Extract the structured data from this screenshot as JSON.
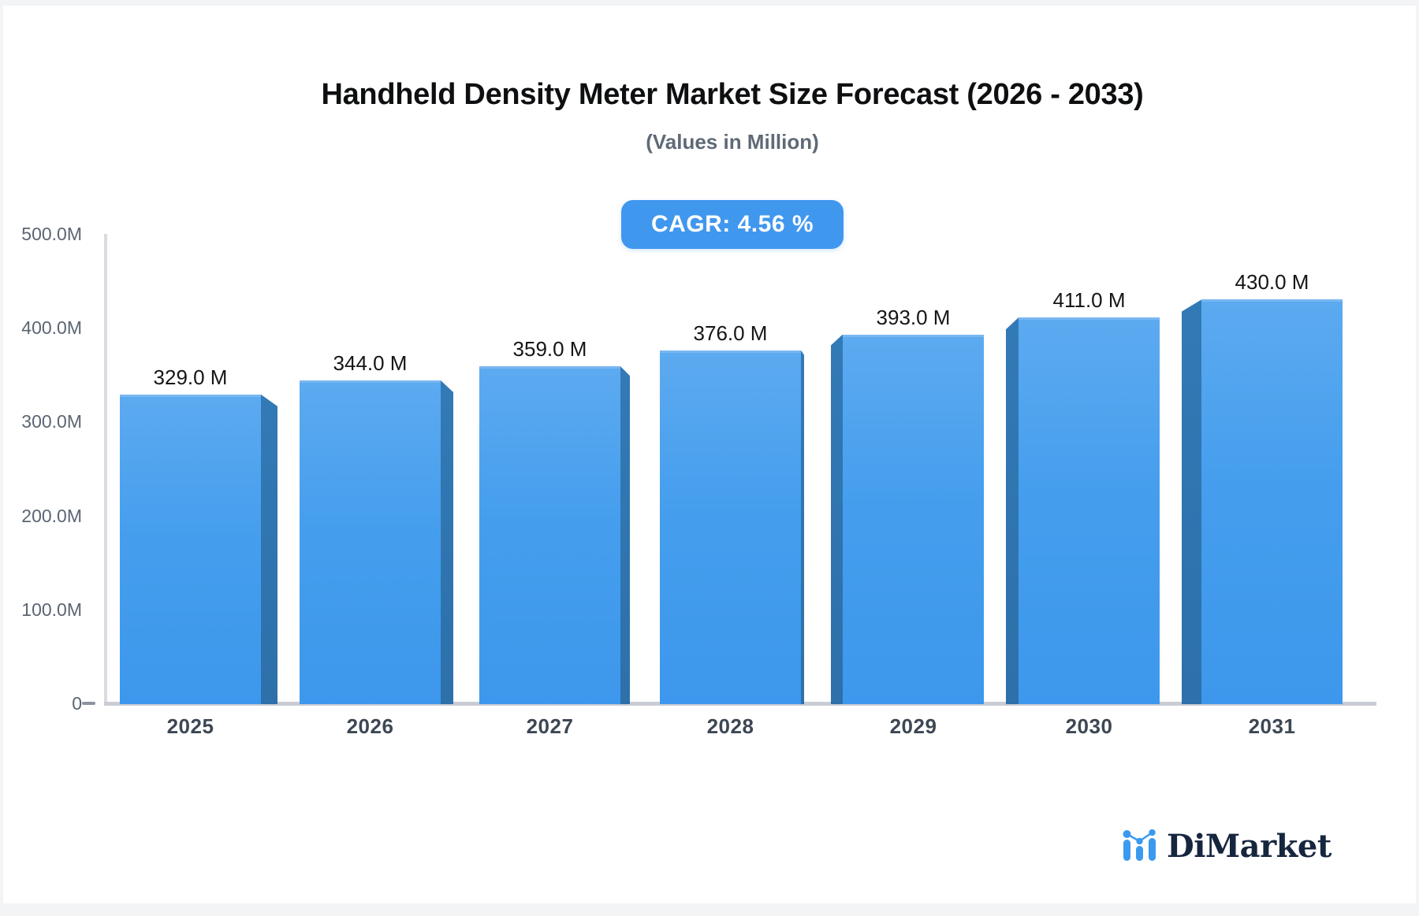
{
  "header": {
    "title": "Handheld Density Meter Market Size Forecast (2026 - 2033)",
    "subtitle": "(Values in Million)",
    "cagr_label": "CAGR: 4.56 %"
  },
  "chart_data": {
    "type": "bar",
    "title": "Handheld Density Meter Market Size Forecast (2026 - 2033)",
    "subtitle": "(Values in Million)",
    "unit": "Million",
    "cagr_percent": 4.56,
    "categories": [
      "2025",
      "2026",
      "2027",
      "2028",
      "2029",
      "2030",
      "2031"
    ],
    "values": [
      329,
      344,
      359,
      376,
      393,
      411,
      430
    ],
    "value_labels": [
      "329.0 M",
      "344.0 M",
      "359.0 M",
      "376.0 M",
      "393.0 M",
      "411.0 M",
      "430.0 M"
    ],
    "y_tick_labels": [
      "500.0M",
      "400.0M",
      "300.0M",
      "200.0M",
      "100.0M",
      "0"
    ],
    "ylim": [
      0,
      500
    ],
    "grid": "off",
    "legend": "none",
    "bar_style": "3d-extruded"
  },
  "colors": {
    "bar_face": "#459eed",
    "bar_side": "#2e74b0",
    "badge": "#4097ee",
    "title_text": "#0e0f11",
    "subtitle_text": "#5f6a76",
    "axis_line": "#dadce1",
    "baseline": "#c9ccd4",
    "y_label_text": "#5b6573",
    "x_label_text": "#3d4754",
    "logo_navy": "#16263e",
    "logo_blue": "#3b9af0"
  },
  "logo": {
    "text": "DiMarket"
  }
}
